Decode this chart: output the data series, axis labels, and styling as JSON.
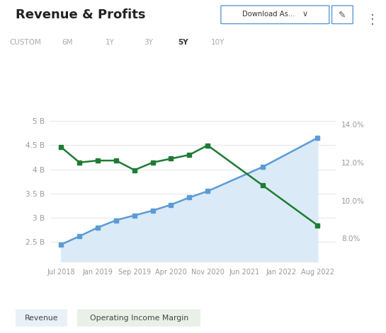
{
  "title": "Revenue & Profits",
  "title_fontsize": 13,
  "bg_color": "#ffffff",
  "tab_labels": [
    "CUSTOM",
    "6M",
    "1Y",
    "3Y",
    "5Y",
    "10Y"
  ],
  "active_tab": "5Y",
  "x_labels": [
    "Jul 2018",
    "Jan 2019",
    "Sep 2019",
    "Apr 2020",
    "Nov 2020",
    "Jun 2021",
    "Jan 2022",
    "Aug 2022"
  ],
  "x_positions": [
    0,
    1,
    2,
    3,
    4,
    5,
    6,
    7
  ],
  "revenue_values": [
    2.45,
    2.62,
    2.8,
    2.95,
    3.05,
    3.15,
    3.27,
    3.42,
    3.55,
    4.05,
    4.65
  ],
  "revenue_x": [
    0,
    0.5,
    1.0,
    1.5,
    2.0,
    2.5,
    3.0,
    3.5,
    4.0,
    5.5,
    7.0
  ],
  "margin_values": [
    12.8,
    12.0,
    12.1,
    12.1,
    11.6,
    12.0,
    12.2,
    12.4,
    12.9,
    10.8,
    8.7
  ],
  "margin_x": [
    0,
    0.5,
    1.0,
    1.5,
    2.0,
    2.5,
    3.0,
    3.5,
    4.0,
    5.5,
    7.0
  ],
  "revenue_color": "#5b9bd5",
  "revenue_fill": "#daeaf7",
  "margin_color": "#1e7b34",
  "left_ylim": [
    2.1,
    5.4
  ],
  "right_ylim": [
    6.8,
    15.2
  ],
  "left_yticks": [
    2.5,
    3.0,
    3.5,
    4.0,
    4.5,
    5.0
  ],
  "left_yticklabels": [
    "2.5 B",
    "3 B",
    "3.5 B",
    "4 B",
    "4.5 B",
    "5 B"
  ],
  "right_yticks": [
    8.0,
    10.0,
    12.0,
    14.0
  ],
  "right_yticklabels": [
    "8.0%",
    "10.0%",
    "12.0%",
    "14.0%"
  ],
  "legend_revenue_label": "Revenue",
  "legend_margin_label": "Operating Income Margin",
  "grid_color": "#e8e8e8",
  "axis_label_color": "#999999",
  "xlim": [
    -0.3,
    7.5
  ]
}
